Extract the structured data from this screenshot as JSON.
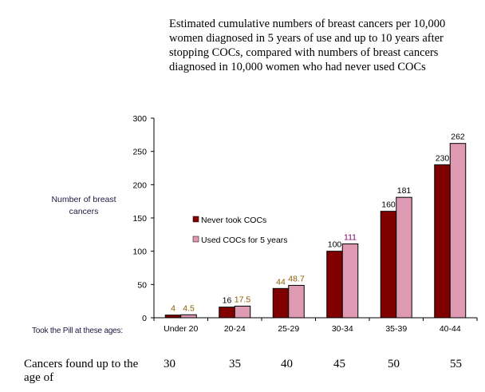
{
  "title_lines": [
    "Estimated cumulative numbers of breast cancers per 10,000",
    "women diagnosed in 5 years of use and up to 10 years after",
    "stopping COCs, compared with numbers of breast cancers",
    "diagnosed in 10,000 women who had never used COCs"
  ],
  "chart_data": {
    "type": "bar",
    "ylabel": "Number of breast cancers",
    "xlabel": "Took the Pill at these ages:",
    "categories": [
      "Under 20",
      "20-24",
      "25-29",
      "30-34",
      "35-39",
      "40-44"
    ],
    "ylim": [
      0,
      300
    ],
    "yticks": [
      0,
      50,
      100,
      150,
      200,
      250,
      300
    ],
    "grid": false,
    "legend_position": "center-left",
    "series": [
      {
        "name": "Never took COCs",
        "color": "#800000",
        "values": [
          4,
          16,
          44,
          100,
          160,
          230
        ],
        "labels": [
          "4",
          "16",
          "44",
          "100",
          "160",
          "230"
        ],
        "label_colors": [
          "#8a5a00",
          "#000000",
          "#8a5a00",
          "#000000",
          "#000000",
          "#000000"
        ]
      },
      {
        "name": "Used COCs for 5 years",
        "color": "#df9ab3",
        "values": [
          4.5,
          17.5,
          48.7,
          111,
          181,
          262
        ],
        "labels": [
          "4.5",
          "17.5",
          "48.7",
          "111",
          "181",
          "262"
        ],
        "label_colors": [
          "#8a5a00",
          "#8a5a00",
          "#8a5a00",
          "#800060",
          "#000000",
          "#000000"
        ]
      }
    ]
  },
  "cancers_found": {
    "label": "Cancers found up to the age of",
    "ages": [
      "30",
      "35",
      "40",
      "45",
      "50",
      "55"
    ]
  }
}
